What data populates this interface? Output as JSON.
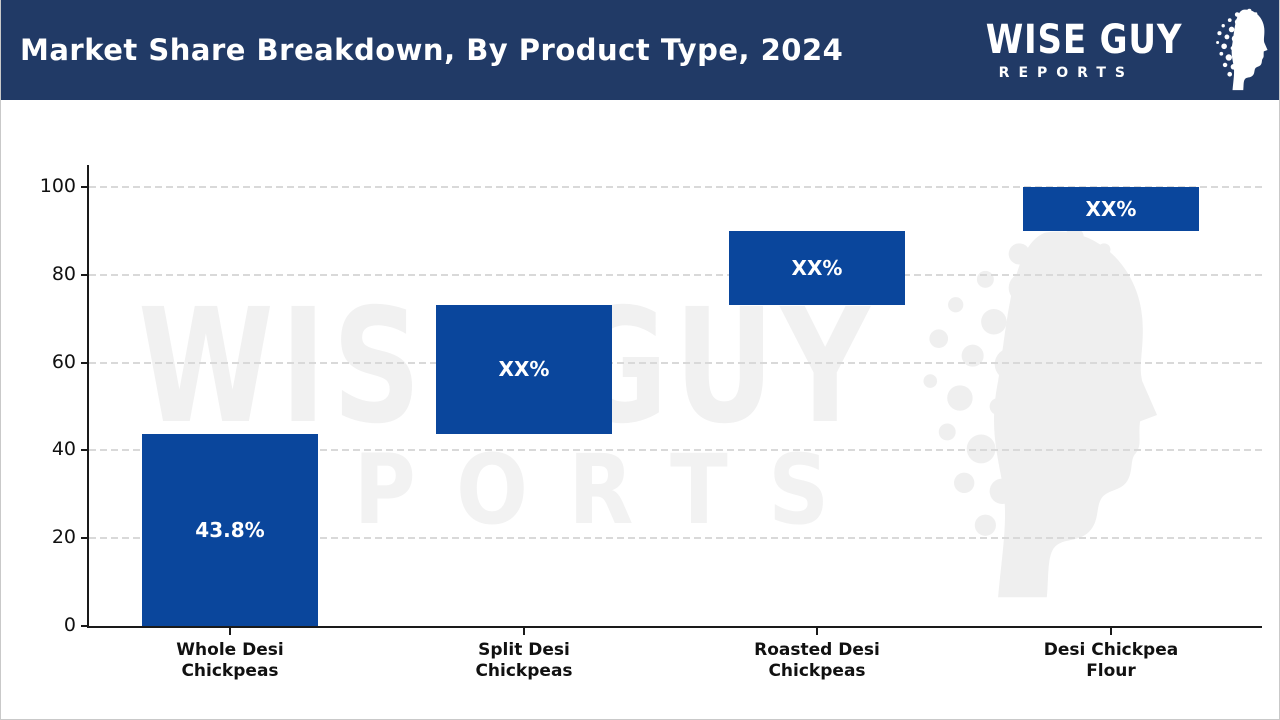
{
  "page": {
    "bg": "#ffffff",
    "border_color": "#c9c9c9"
  },
  "header": {
    "bg_color": "#213a66",
    "title": "Market Share Breakdown, By Product Type, 2024",
    "logo": {
      "line1": "WISE GUY",
      "line2": "REPORTS"
    }
  },
  "watermark": {
    "line1": "WISE GUY",
    "line2": "REPORTS"
  },
  "chart_data": {
    "type": "bar",
    "subtype": "waterfall-breakdown",
    "title": "Market Share Breakdown, By Product Type, 2024",
    "categories": [
      "Whole Desi Chickpeas",
      "Split Desi Chickpeas",
      "Roasted Desi Chickpeas",
      "Desi Chickpea Flour"
    ],
    "category_lines": [
      [
        "Whole Desi",
        "Chickpeas"
      ],
      [
        "Split Desi",
        "Chickpeas"
      ],
      [
        "Roasted Desi",
        "Chickpeas"
      ],
      [
        "Desi Chickpea",
        "Flour"
      ]
    ],
    "segments": [
      {
        "category": "Whole Desi Chickpeas",
        "start": 0,
        "end": 43.8,
        "label": "43.8%"
      },
      {
        "category": "Split Desi Chickpeas",
        "start": 43.8,
        "end": 73.2,
        "label": "XX%"
      },
      {
        "category": "Roasted Desi Chickpeas",
        "start": 73.2,
        "end": 90,
        "label": "XX%"
      },
      {
        "category": "Desi Chickpea Flour",
        "start": 90,
        "end": 100,
        "label": "XX%"
      }
    ],
    "xlabel": "",
    "ylabel": "",
    "ylim": [
      0,
      100
    ],
    "y_ticks": [
      0,
      20,
      40,
      60,
      80,
      100
    ],
    "grid": "horizontal-dashed",
    "legend": "none",
    "bar_color": "#0a469c",
    "bar_label_color": "#ffffff",
    "axis_color": "#1a1a1a",
    "gridline_color": "#d9d9d9"
  }
}
